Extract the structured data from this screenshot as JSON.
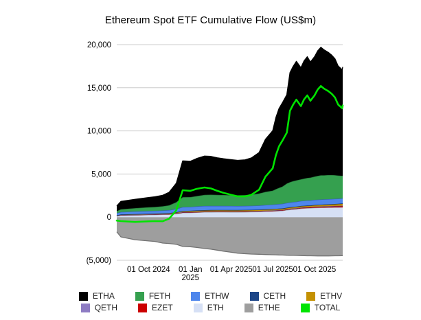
{
  "chart_data": {
    "type": "area",
    "stacked": true,
    "title": "Ethereum Spot ETF Cumulative Flow (US$m)",
    "grid": true,
    "legend_position": "bottom",
    "ylim": [
      -5000,
      20000
    ],
    "yticks": [
      {
        "value": 20000,
        "label": "20,000"
      },
      {
        "value": 15000,
        "label": "15,000"
      },
      {
        "value": 10000,
        "label": "10,000"
      },
      {
        "value": 5000,
        "label": "5,000"
      },
      {
        "value": 0,
        "label": "0"
      },
      {
        "value": -5000,
        "label": "(5,000)"
      }
    ],
    "xticks": [
      {
        "date": "2024-10-01",
        "lines": [
          "01 Oct 2024"
        ]
      },
      {
        "date": "2025-01-01",
        "lines": [
          "01 Jan",
          "2025"
        ]
      },
      {
        "date": "2025-04-01",
        "lines": [
          "01 Apr 2025"
        ]
      },
      {
        "date": "2025-07-01",
        "lines": [
          "01 Jul 2025"
        ]
      },
      {
        "date": "2025-10-01",
        "lines": [
          "01 Oct 2025"
        ]
      }
    ],
    "x": [
      "2024-07-23",
      "2024-08-01",
      "2024-09-01",
      "2024-10-01",
      "2024-10-15",
      "2024-11-01",
      "2024-11-15",
      "2024-12-01",
      "2024-12-15",
      "2025-01-01",
      "2025-01-15",
      "2025-02-01",
      "2025-02-15",
      "2025-03-01",
      "2025-03-15",
      "2025-04-01",
      "2025-04-15",
      "2025-05-01",
      "2025-05-15",
      "2025-06-01",
      "2025-06-15",
      "2025-07-01",
      "2025-07-08",
      "2025-07-15",
      "2025-07-22",
      "2025-08-01",
      "2025-08-08",
      "2025-08-15",
      "2025-08-22",
      "2025-09-01",
      "2025-09-08",
      "2025-09-15",
      "2025-09-22",
      "2025-10-01",
      "2025-10-08",
      "2025-10-15",
      "2025-10-22",
      "2025-11-01",
      "2025-11-08",
      "2025-11-15",
      "2025-11-22",
      "2025-12-01",
      "2025-12-02"
    ],
    "stack_order": [
      "ETHE",
      "ETH",
      "EZET",
      "QETH",
      "ETHV",
      "CETH",
      "ETHW",
      "FETH",
      "ETHA"
    ],
    "series": [
      {
        "name": "ETHA",
        "color": "#000000",
        "values": [
          600,
          920,
          1020,
          1130,
          1180,
          1270,
          1500,
          2200,
          4200,
          4150,
          4350,
          4500,
          4450,
          4300,
          4200,
          4120,
          4050,
          4080,
          4250,
          4750,
          6100,
          6950,
          8300,
          9200,
          9700,
          10300,
          12700,
          13300,
          13800,
          12950,
          13650,
          14050,
          13400,
          13900,
          14500,
          14850,
          14550,
          14200,
          13900,
          13500,
          12700,
          12300,
          12600
        ]
      },
      {
        "name": "FETH",
        "color": "#35a04f",
        "values": [
          240,
          310,
          380,
          430,
          450,
          490,
          560,
          780,
          1150,
          1130,
          1200,
          1280,
          1290,
          1270,
          1260,
          1250,
          1240,
          1250,
          1290,
          1380,
          1520,
          1620,
          1760,
          1880,
          1980,
          2250,
          2340,
          2420,
          2470,
          2510,
          2560,
          2610,
          2630,
          2700,
          2760,
          2800,
          2780,
          2790,
          2770,
          2740,
          2680,
          2620,
          2630
        ]
      },
      {
        "name": "ETHW",
        "color": "#4e86ec",
        "values": [
          250,
          285,
          305,
          315,
          318,
          325,
          335,
          390,
          460,
          455,
          470,
          485,
          482,
          475,
          470,
          465,
          462,
          465,
          470,
          480,
          500,
          515,
          525,
          532,
          540,
          558,
          565,
          572,
          576,
          580,
          585,
          590,
          588,
          598,
          602,
          605,
          603,
          600,
          597,
          594,
          590,
          588,
          590
        ]
      },
      {
        "name": "CETH",
        "color": "#1c4587",
        "values": [
          8,
          10,
          12,
          14,
          14,
          15,
          16,
          17,
          18,
          19,
          19,
          20,
          20,
          20,
          20,
          20,
          20,
          21,
          21,
          21,
          22,
          22,
          23,
          23,
          23,
          24,
          24,
          24,
          25,
          25,
          25,
          25,
          25,
          26,
          26,
          26,
          26,
          27,
          27,
          27,
          27,
          28,
          28
        ]
      },
      {
        "name": "ETHV",
        "color": "#c49102",
        "values": [
          40,
          50,
          58,
          62,
          64,
          68,
          75,
          90,
          112,
          120,
          124,
          128,
          130,
          130,
          130,
          130,
          130,
          131,
          132,
          133,
          134,
          136,
          138,
          139,
          140,
          142,
          144,
          146,
          148,
          150,
          153,
          156,
          160,
          165,
          170,
          175,
          180,
          185,
          195,
          205,
          215,
          225,
          228
        ]
      },
      {
        "name": "QETH",
        "color": "#8e7cc3",
        "values": [
          15,
          20,
          23,
          25,
          25,
          26,
          28,
          30,
          34,
          36,
          37,
          38,
          38,
          38,
          39,
          39,
          39,
          40,
          40,
          41,
          41,
          42,
          42,
          43,
          43,
          44,
          44,
          44,
          45,
          45,
          45,
          45,
          46,
          46,
          46,
          46,
          47,
          47,
          47,
          47,
          47,
          48,
          48
        ]
      },
      {
        "name": "EZET",
        "color": "#cc0000",
        "values": [
          25,
          30,
          33,
          35,
          35,
          36,
          38,
          40,
          44,
          47,
          48,
          50,
          50,
          50,
          50,
          50,
          50,
          51,
          52,
          52,
          53,
          54,
          56,
          58,
          58,
          60,
          63,
          68,
          70,
          75,
          80,
          82,
          84,
          90,
          93,
          95,
          101,
          110,
          116,
          121,
          131,
          145,
          150
        ]
      },
      {
        "name": "ETH",
        "color": "#d6e0f5",
        "values": [
          120,
          200,
          230,
          265,
          275,
          300,
          320,
          390,
          500,
          520,
          550,
          580,
          590,
          595,
          595,
          590,
          592,
          600,
          610,
          630,
          660,
          685,
          705,
          725,
          750,
          820,
          870,
          905,
          930,
          1000,
          1020,
          1040,
          1050,
          1080,
          1090,
          1100,
          1110,
          1120,
          1125,
          1130,
          1132,
          1138,
          1140
        ]
      },
      {
        "name": "ETHE",
        "color": "#9e9e9e",
        "values": [
          -1700,
          -2290,
          -2620,
          -2760,
          -2820,
          -3010,
          -3060,
          -3150,
          -3400,
          -3430,
          -3520,
          -3640,
          -3720,
          -3830,
          -3950,
          -4080,
          -4180,
          -4240,
          -4280,
          -4310,
          -4340,
          -4360,
          -4375,
          -4385,
          -4395,
          -4415,
          -4425,
          -4435,
          -4445,
          -4460,
          -4470,
          -4480,
          -4485,
          -4490,
          -4495,
          -4500,
          -4500,
          -4495,
          -4490,
          -4485,
          -4480,
          -4470,
          -4468
        ]
      }
    ],
    "total": {
      "name": "TOTAL",
      "color": "#00e400",
      "values": [
        -402,
        -465,
        -559,
        -484,
        -459,
        -480,
        -188,
        787,
        3118,
        3047,
        3278,
        3441,
        3330,
        3048,
        2814,
        2584,
        2403,
        2398,
        2585,
        3177,
        4690,
        5664,
        7174,
        8215,
        8839,
        9783,
        12325,
        13044,
        13619,
        12875,
        13648,
        14118,
        13498,
        14115,
        14792,
        15197,
        14897,
        14584,
        14287,
        13879,
        13042,
        12622,
        12946
      ]
    }
  },
  "legend": {
    "rows": [
      [
        "ETHA",
        "FETH",
        "ETHW",
        "CETH",
        "ETHV"
      ],
      [
        "QETH",
        "EZET",
        "ETH",
        "ETHE",
        "TOTAL"
      ]
    ]
  },
  "colors": {
    "gridline": "#cccccc",
    "axis_text": "#000000",
    "background": "#ffffff"
  }
}
